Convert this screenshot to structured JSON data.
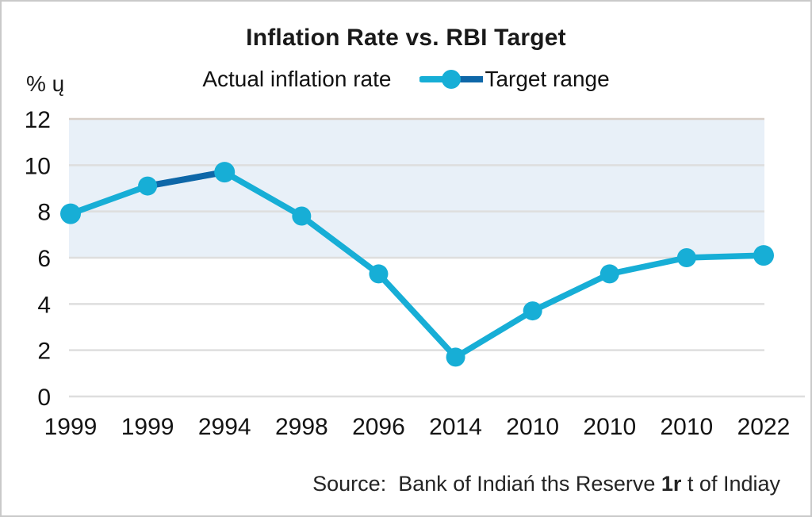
{
  "title": "Inflation Rate vs. RBI Target",
  "legend": {
    "actual_label": "Actual inflation rate",
    "target_label": "Target range"
  },
  "y_axis_unit": "% ų",
  "source": {
    "prefix": "Source:  Bank of Indiań ths Reserve ",
    "bold": "1r",
    "suffix": " t of Indiay"
  },
  "colors": {
    "line": "#17aed6",
    "target_segment": "#0e67a8",
    "band": "#e8f0f8",
    "gridline": "#dedede",
    "gridline_top": "#d8cfc8",
    "tick_text": "#141414",
    "border": "#c9c9c9"
  },
  "chart_data": {
    "type": "line",
    "title": "Inflation Rate vs. RBI Target",
    "categories": [
      "1999",
      "1999",
      "2994",
      "2998",
      "2096",
      "2014",
      "2010",
      "2010",
      "2010",
      "2022"
    ],
    "series": [
      {
        "name": "Actual inflation rate",
        "color": "#17aed6",
        "values": [
          7.9,
          9.1,
          9.7,
          7.8,
          5.3,
          1.7,
          3.7,
          5.3,
          6.0,
          6.1
        ]
      },
      {
        "name": "Target range",
        "color": "#0e67a8",
        "values": null,
        "note": "shown as shaded band 6-12 and dark segment between points 2 and 3"
      }
    ],
    "highlight_segment": {
      "start_index": 1,
      "end_index": 2
    },
    "target_band": {
      "ymin": 6,
      "ymax": 12
    },
    "xlabel": "",
    "ylabel": "%",
    "ylim": [
      0,
      12
    ],
    "yticks": [
      0,
      2,
      4,
      6,
      8,
      10,
      12
    ],
    "grid": true,
    "legend_position": "top"
  }
}
